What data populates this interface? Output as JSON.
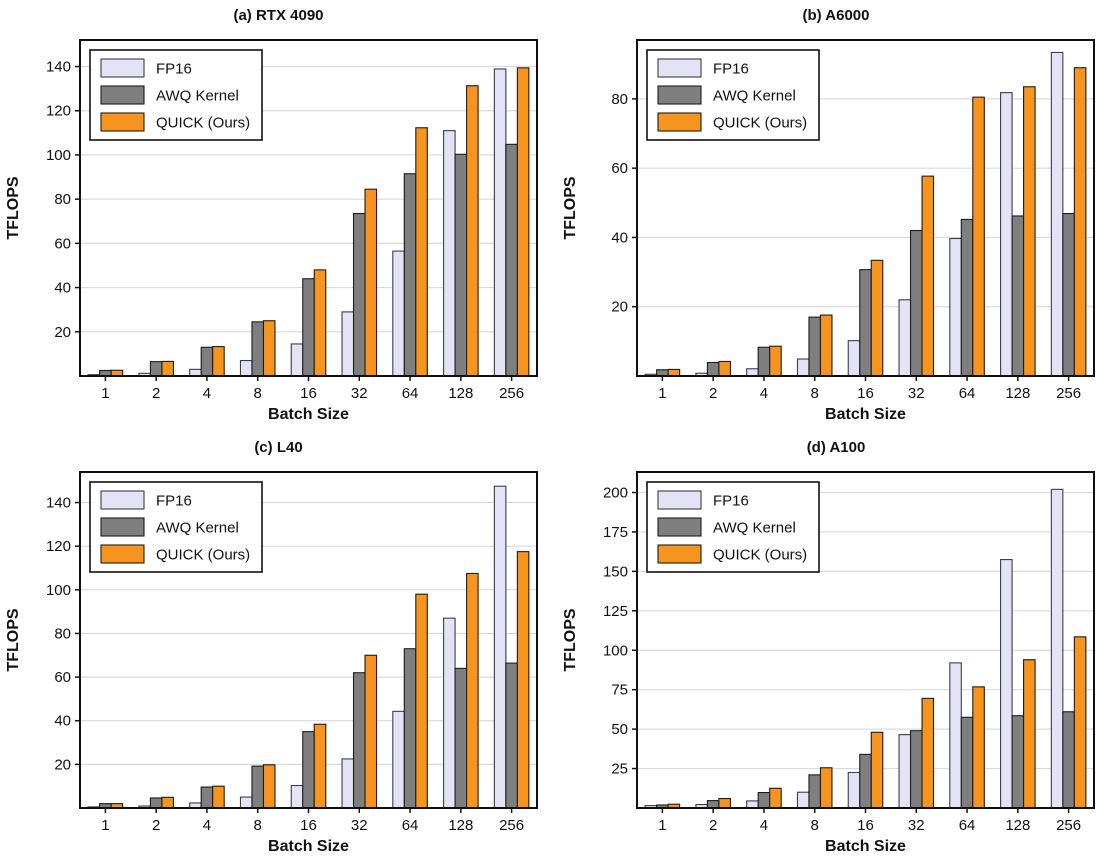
{
  "figure": {
    "background": "#ffffff",
    "grid_color": "#dbdbdb",
    "axis_color": "#111111"
  },
  "chart_data": [
    {
      "id": "a",
      "type": "bar",
      "title": "(a) RTX 4090",
      "xlabel": "Batch Size",
      "ylabel": "TFLOPS",
      "categories": [
        "1",
        "2",
        "4",
        "8",
        "16",
        "32",
        "64",
        "128",
        "256"
      ],
      "series": [
        {
          "name": "FP16",
          "color": "#e3e3f5",
          "edge": "#3b3b52",
          "values": [
            0.6,
            1.2,
            3.0,
            7.0,
            14.5,
            29.0,
            56.5,
            111.0,
            138.9
          ]
        },
        {
          "name": "AWQ Kernel",
          "color": "#7f7f7f",
          "edge": "#1c1c1c",
          "values": [
            2.5,
            6.5,
            13.0,
            24.5,
            44.0,
            73.5,
            91.5,
            100.3,
            104.8
          ]
        },
        {
          "name": "QUICK (Ours)",
          "color": "#f7941e",
          "edge": "#1c1c1c",
          "values": [
            2.6,
            6.6,
            13.3,
            25.0,
            48.0,
            84.5,
            112.3,
            131.3,
            139.4
          ]
        }
      ],
      "ylim": [
        0,
        152
      ],
      "yticks": [
        20,
        40,
        60,
        80,
        100,
        120,
        140
      ],
      "legend_position": "upper-left",
      "grid": "horizontal"
    },
    {
      "id": "b",
      "type": "bar",
      "title": "(b) A6000",
      "xlabel": "Batch Size",
      "ylabel": "TFLOPS",
      "categories": [
        "1",
        "2",
        "4",
        "8",
        "16",
        "32",
        "64",
        "128",
        "256"
      ],
      "series": [
        {
          "name": "FP16",
          "color": "#e3e3f5",
          "edge": "#3b3b52",
          "values": [
            0.5,
            0.8,
            2.1,
            4.9,
            10.2,
            22.0,
            39.7,
            81.8,
            93.4
          ]
        },
        {
          "name": "AWQ Kernel",
          "color": "#7f7f7f",
          "edge": "#1c1c1c",
          "values": [
            1.8,
            3.9,
            8.3,
            17.0,
            30.7,
            42.0,
            45.2,
            46.2,
            46.9
          ]
        },
        {
          "name": "QUICK (Ours)",
          "color": "#f7941e",
          "edge": "#1c1c1c",
          "values": [
            1.9,
            4.2,
            8.6,
            17.6,
            33.4,
            57.7,
            80.5,
            83.5,
            89.0
          ]
        }
      ],
      "ylim": [
        0,
        97
      ],
      "yticks": [
        20,
        40,
        60,
        80
      ],
      "legend_position": "upper-left",
      "grid": "horizontal"
    },
    {
      "id": "c",
      "type": "bar",
      "title": "(c) L40",
      "xlabel": "Batch Size",
      "ylabel": "TFLOPS",
      "categories": [
        "1",
        "2",
        "4",
        "8",
        "16",
        "32",
        "64",
        "128",
        "256"
      ],
      "series": [
        {
          "name": "FP16",
          "color": "#e3e3f5",
          "edge": "#3b3b52",
          "values": [
            0.5,
            0.9,
            2.3,
            5.0,
            10.3,
            22.5,
            44.3,
            87.0,
            147.5
          ]
        },
        {
          "name": "AWQ Kernel",
          "color": "#7f7f7f",
          "edge": "#1c1c1c",
          "values": [
            2.0,
            4.6,
            9.6,
            19.2,
            35.0,
            62.0,
            73.0,
            64.0,
            66.4
          ]
        },
        {
          "name": "QUICK (Ours)",
          "color": "#f7941e",
          "edge": "#1c1c1c",
          "values": [
            2.0,
            4.9,
            10.0,
            19.8,
            38.4,
            70.0,
            98.0,
            107.5,
            117.5
          ]
        }
      ],
      "ylim": [
        0,
        154
      ],
      "yticks": [
        20,
        40,
        60,
        80,
        100,
        120,
        140
      ],
      "legend_position": "upper-left",
      "grid": "horizontal"
    },
    {
      "id": "d",
      "type": "bar",
      "title": "(d) A100",
      "xlabel": "Batch Size",
      "ylabel": "TFLOPS",
      "categories": [
        "1",
        "2",
        "4",
        "8",
        "16",
        "32",
        "64",
        "128",
        "256"
      ],
      "series": [
        {
          "name": "FP16",
          "color": "#e3e3f5",
          "edge": "#3b3b52",
          "values": [
            1.5,
            2.2,
            4.5,
            10.0,
            22.5,
            46.5,
            92.0,
            157.5,
            202.0
          ]
        },
        {
          "name": "AWQ Kernel",
          "color": "#7f7f7f",
          "edge": "#1c1c1c",
          "values": [
            1.9,
            4.7,
            9.8,
            21.0,
            34.0,
            49.0,
            57.5,
            58.5,
            61.0
          ]
        },
        {
          "name": "QUICK (Ours)",
          "color": "#f7941e",
          "edge": "#1c1c1c",
          "values": [
            2.4,
            6.0,
            12.5,
            25.5,
            48.0,
            69.5,
            76.8,
            94.0,
            108.5
          ]
        }
      ],
      "ylim": [
        0,
        213
      ],
      "yticks": [
        25,
        50,
        75,
        100,
        125,
        150,
        175,
        200
      ],
      "legend_position": "upper-left",
      "grid": "horizontal"
    }
  ]
}
